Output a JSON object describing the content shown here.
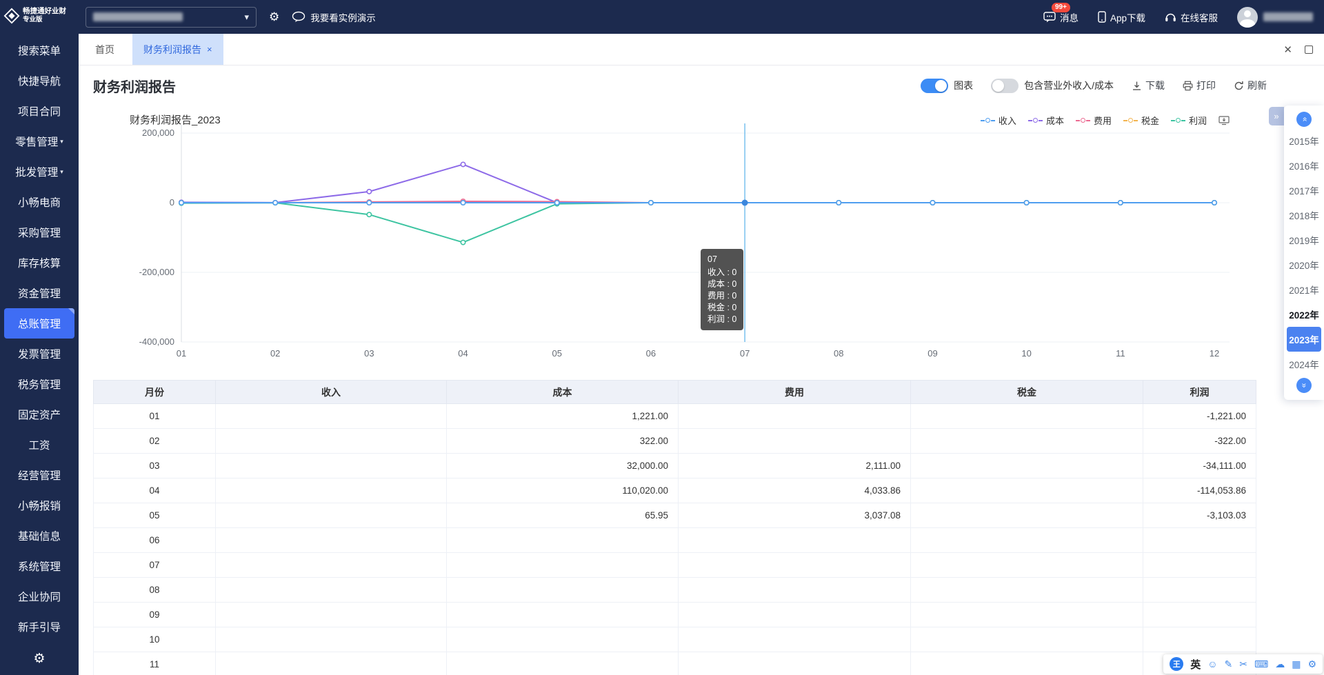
{
  "brand": {
    "name": "畅捷通好业财",
    "edition": "专业版"
  },
  "topbar": {
    "demo_label": "我要看实例演示",
    "messages_label": "消息",
    "messages_badge": "99+",
    "app_download_label": "App下载",
    "support_label": "在线客服"
  },
  "sidebar": {
    "items": [
      {
        "label": "搜索菜单"
      },
      {
        "label": "快捷导航"
      },
      {
        "label": "项目合同"
      },
      {
        "label": "零售管理",
        "arrow": true
      },
      {
        "label": "批发管理",
        "arrow": true
      },
      {
        "label": "小畅电商"
      },
      {
        "label": "采购管理"
      },
      {
        "label": "库存核算"
      },
      {
        "label": "资金管理"
      },
      {
        "label": "总账管理",
        "active": true
      },
      {
        "label": "发票管理"
      },
      {
        "label": "税务管理"
      },
      {
        "label": "固定资产"
      },
      {
        "label": "工资"
      },
      {
        "label": "经营管理"
      },
      {
        "label": "小畅报销"
      },
      {
        "label": "基础信息"
      },
      {
        "label": "系统管理"
      },
      {
        "label": "企业协同"
      },
      {
        "label": "新手引导"
      }
    ]
  },
  "tabs": [
    {
      "label": "首页",
      "active": false,
      "closable": false
    },
    {
      "label": "财务利润报告",
      "active": true,
      "closable": true
    }
  ],
  "page": {
    "title": "财务利润报告",
    "chart_toggle_label": "图表",
    "chart_toggle_on": true,
    "include_toggle_label": "包含营业外收入/成本",
    "include_toggle_on": false,
    "download_label": "下载",
    "print_label": "打印",
    "refresh_label": "刷新"
  },
  "chart_data": {
    "type": "line",
    "title": "财务利润报告_2023",
    "x": [
      "01",
      "02",
      "03",
      "04",
      "05",
      "06",
      "07",
      "08",
      "09",
      "10",
      "11",
      "12"
    ],
    "ylim": [
      -400000,
      200000
    ],
    "yticks": [
      200000,
      0,
      -200000,
      -400000
    ],
    "ytick_labels": [
      "200,000",
      "0",
      "-200,000",
      "-400,000"
    ],
    "grid": true,
    "legend_position": "top-right",
    "series": [
      {
        "name": "收入",
        "color": "#4f9ef0",
        "values": [
          0,
          0,
          0,
          0,
          0,
          0,
          0,
          0,
          0,
          0,
          0,
          0
        ]
      },
      {
        "name": "成本",
        "color": "#8d6ae8",
        "values": [
          1221,
          322,
          32000,
          110020,
          65.95,
          0,
          0,
          0,
          0,
          0,
          0,
          0
        ]
      },
      {
        "name": "费用",
        "color": "#ec6a92",
        "values": [
          0,
          0,
          2111,
          4033.86,
          3037.08,
          0,
          0,
          0,
          0,
          0,
          0,
          0
        ]
      },
      {
        "name": "税金",
        "color": "#f3b44f",
        "values": [
          0,
          0,
          0,
          0,
          0,
          0,
          0,
          0,
          0,
          0,
          0,
          0
        ]
      },
      {
        "name": "利润",
        "color": "#3dc4a1",
        "values": [
          -1221,
          -322,
          -34111,
          -114053.86,
          -3103.03,
          0,
          0,
          0,
          0,
          0,
          0,
          0
        ]
      }
    ],
    "crosshair_index": 6,
    "tooltip": {
      "title": "07",
      "rows": [
        {
          "label": "收入",
          "value": "0"
        },
        {
          "label": "成本",
          "value": "0"
        },
        {
          "label": "费用",
          "value": "0"
        },
        {
          "label": "税金",
          "value": "0"
        },
        {
          "label": "利润",
          "value": "0"
        }
      ]
    }
  },
  "table": {
    "headers": [
      "月份",
      "收入",
      "成本",
      "费用",
      "税金",
      "利润"
    ],
    "rows": [
      [
        "01",
        "",
        "1,221.00",
        "",
        "",
        "-1,221.00"
      ],
      [
        "02",
        "",
        "322.00",
        "",
        "",
        "-322.00"
      ],
      [
        "03",
        "",
        "32,000.00",
        "2,111.00",
        "",
        "-34,111.00"
      ],
      [
        "04",
        "",
        "110,020.00",
        "4,033.86",
        "",
        "-114,053.86"
      ],
      [
        "05",
        "",
        "65.95",
        "3,037.08",
        "",
        "-3,103.03"
      ],
      [
        "06",
        "",
        "",
        "",
        "",
        ""
      ],
      [
        "07",
        "",
        "",
        "",
        "",
        ""
      ],
      [
        "08",
        "",
        "",
        "",
        "",
        ""
      ],
      [
        "09",
        "",
        "",
        "",
        "",
        ""
      ],
      [
        "10",
        "",
        "",
        "",
        "",
        ""
      ],
      [
        "11",
        "",
        "",
        "",
        "",
        ""
      ]
    ]
  },
  "year_panel": {
    "years": [
      "2015年",
      "2016年",
      "2017年",
      "2018年",
      "2019年",
      "2020年",
      "2021年",
      "2022年",
      "2023年",
      "2024年"
    ],
    "selected": "2023年",
    "emphasized": "2022年"
  },
  "ime": {
    "logo": "王",
    "lang": "英"
  },
  "colors": {
    "sidebar_bg": "#1c2a4e",
    "active_item": "#3f6df4",
    "tab_active_bg": "#cfe0fb",
    "toggle_on": "#3c8cf5",
    "year_selected": "#4b82f0",
    "badge": "#f4493c",
    "crosshair": "#78c0ee"
  }
}
